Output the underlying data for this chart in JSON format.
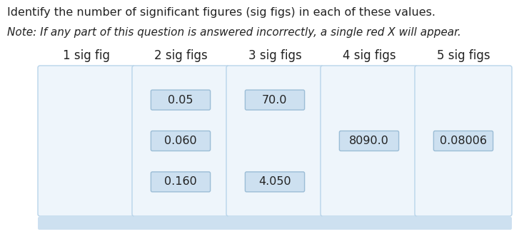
{
  "title1": "Identify the number of significant figures (sig figs) in each of these values.",
  "title2": "Note: If any part of this question is answered incorrectly, a single red X will appear.",
  "columns": [
    "1 sig fig",
    "2 sig figs",
    "3 sig figs",
    "4 sig figs",
    "5 sig figs"
  ],
  "bg_color": "#ffffff",
  "col_border_color": "#b8d4ea",
  "col_fill_color": "#eef5fb",
  "item_bg_color": "#cde0f0",
  "item_border_color": "#9bbdd6",
  "header_color": "#222222",
  "text_color": "#222222",
  "title_fontsize": 11.5,
  "note_fontsize": 11.0,
  "header_fontsize": 12.0,
  "item_fontsize": 11.5,
  "bottom_bar_color": "#cde0f0",
  "items": [
    {
      "text": "0.05",
      "col": 1,
      "row": 0
    },
    {
      "text": "0.060",
      "col": 1,
      "row": 1
    },
    {
      "text": "0.160",
      "col": 1,
      "row": 2
    },
    {
      "text": "70.0",
      "col": 2,
      "row": 0
    },
    {
      "text": "4.050",
      "col": 2,
      "row": 2
    },
    {
      "text": "8090.0",
      "col": 3,
      "row": 1
    },
    {
      "text": "0.08006",
      "col": 4,
      "row": 1
    }
  ]
}
